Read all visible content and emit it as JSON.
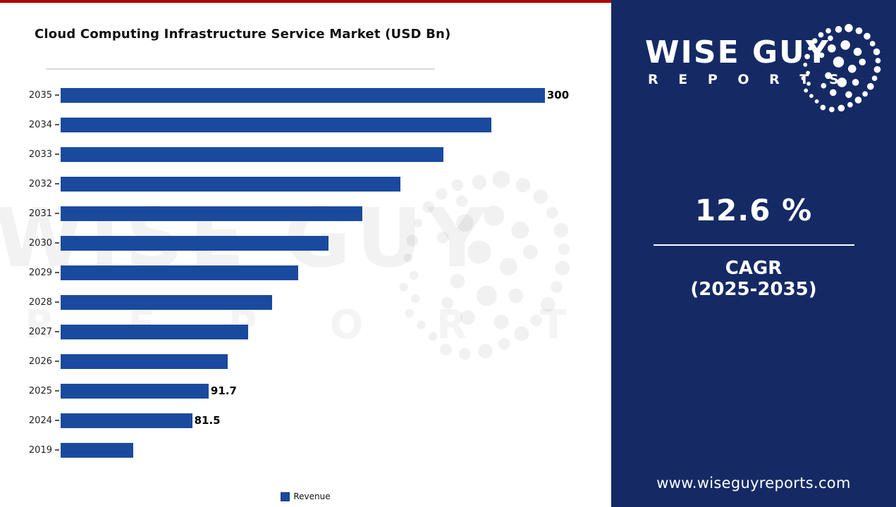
{
  "chart": {
    "title": "Cloud Computing Infrastructure Service Market (USD Bn)",
    "legend_label": "Revenue"
  },
  "chart_data": {
    "type": "bar",
    "orientation": "horizontal",
    "title": "Cloud Computing Infrastructure Service Market (USD Bn)",
    "xlabel": "",
    "ylabel": "",
    "categories": [
      "2035",
      "2034",
      "2033",
      "2032",
      "2031",
      "2030",
      "2029",
      "2028",
      "2027",
      "2026",
      "2025",
      "2024",
      "2019"
    ],
    "values": [
      300,
      266.8,
      237.0,
      210.5,
      186.9,
      166.0,
      147.4,
      130.9,
      116.3,
      103.3,
      91.7,
      81.5,
      45.0
    ],
    "value_labels": [
      "300",
      "",
      "",
      "",
      "",
      "",
      "",
      "",
      "",
      "",
      "91.7",
      "81.5",
      ""
    ],
    "axis_max": 335,
    "grid": false,
    "legend": [
      "Revenue"
    ],
    "legend_position": "bottom-center",
    "bar_color": "#1a4a9e"
  },
  "watermark": {
    "line1": "WISE GUY",
    "line2": "R E P O R T S"
  },
  "sidebar": {
    "logo_line1": "WISE GUY",
    "logo_line2": "R E P O R T S",
    "cagr_value": "12.6 %",
    "cagr_label": "CAGR",
    "cagr_range": "(2025-2035)",
    "website": "www.wiseguyreports.com",
    "bg_color": "#152a64"
  },
  "colors": {
    "bar_blue": "#1a4a9e",
    "panel_navy": "#152a64",
    "top_stripe_red": "#b00000",
    "title_underline_gray": "#d9d9d9"
  }
}
